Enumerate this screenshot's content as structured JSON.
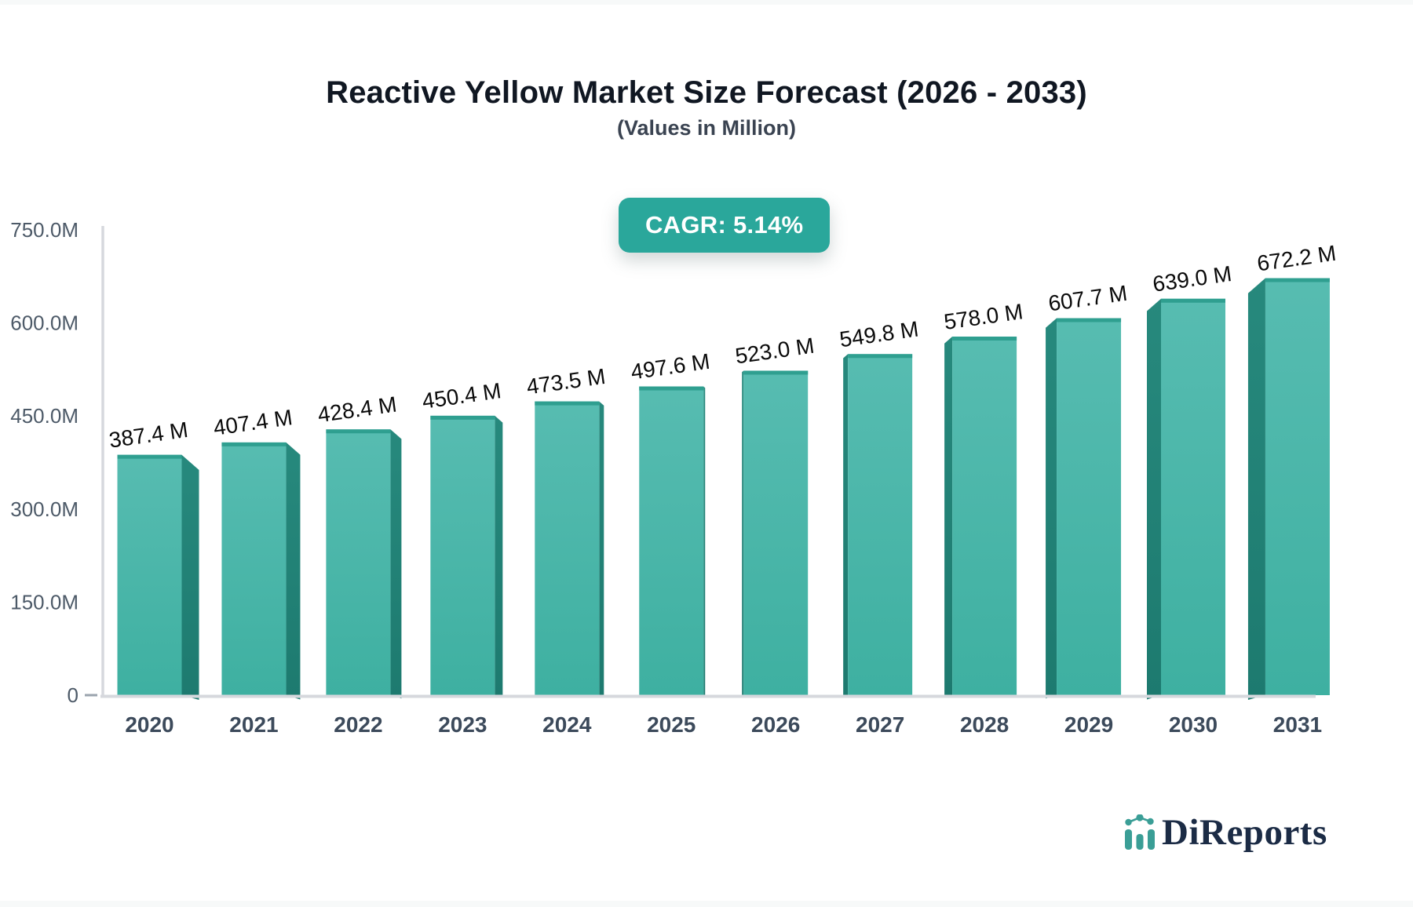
{
  "chart_data": {
    "type": "bar",
    "title": "Reactive Yellow Market Size Forecast (2026 - 2033)",
    "subtitle": "(Values in Million)",
    "cagr_label": "CAGR: 5.14%",
    "categories": [
      "2020",
      "2021",
      "2022",
      "2023",
      "2024",
      "2025",
      "2026",
      "2027",
      "2028",
      "2029",
      "2030",
      "2031"
    ],
    "values": [
      387.4,
      407.4,
      428.4,
      450.4,
      473.5,
      497.6,
      523.0,
      549.8,
      578.0,
      607.7,
      639.0,
      672.2
    ],
    "value_labels": [
      "387.4 M",
      "407.4 M",
      "428.4 M",
      "450.4 M",
      "473.5 M",
      "497.6 M",
      "523.0 M",
      "549.8 M",
      "578.0 M",
      "607.7 M",
      "639.0 M",
      "672.2 M"
    ],
    "yticks": [
      {
        "value": 750,
        "label": "750.0M"
      },
      {
        "value": 600,
        "label": "600.0M"
      },
      {
        "value": 450,
        "label": "450.0M"
      },
      {
        "value": 300,
        "label": "300.0M"
      },
      {
        "value": 150,
        "label": "150.0M"
      },
      {
        "value": 0,
        "label": "0"
      }
    ],
    "ylim": [
      0,
      750
    ],
    "grid": "off",
    "legend": "none",
    "xlabel": "",
    "ylabel": ""
  },
  "colors": {
    "badge_bg": "#2aa79b",
    "bar_face_top": "#57bcb1",
    "bar_face_bottom": "#3eb0a1",
    "bar_side_top": "#27897d",
    "bar_side_bottom": "#1d7a6f",
    "bar_top_strip": "#2f9f90",
    "axis_line": "#d6d8dd",
    "ytick_text": "#4d5a68",
    "xtick_text": "#3c4a5b",
    "value_text": "#0a0a0a",
    "logo_teal": "#3a9e96",
    "logo_navy": "#1b2b45"
  },
  "logo": {
    "text": "DiReports"
  }
}
